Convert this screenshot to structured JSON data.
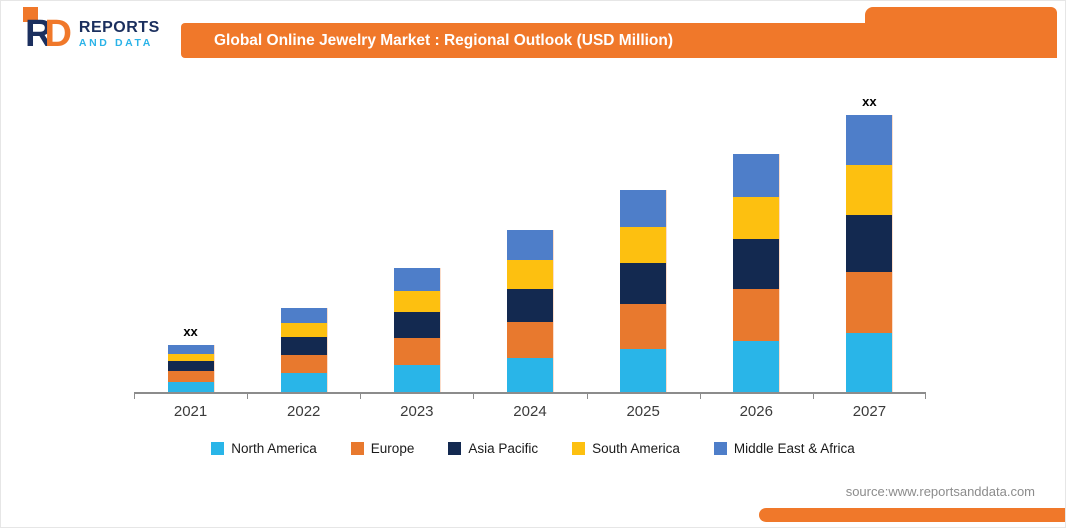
{
  "colors": {
    "accent": "#f0782a",
    "logo_navy": "#1b2f5e",
    "logo_cyan": "#2bb3e8",
    "axis": "#8c8c8c"
  },
  "header": {
    "logo": {
      "mark_r": "R",
      "mark_d": "D",
      "line1": "REPORTS",
      "line2": "AND DATA"
    },
    "title": "Global Online Jewelry Market : Regional Outlook (USD Million)"
  },
  "chart_data": {
    "type": "bar",
    "stacked": true,
    "title": "Global Online Jewelry Market : Regional Outlook (USD Million)",
    "xlabel": "",
    "ylabel": "USD Million",
    "value_axis_shown": false,
    "grid": false,
    "legend_position": "bottom",
    "categories": [
      "2021",
      "2022",
      "2023",
      "2024",
      "2025",
      "2026",
      "2027"
    ],
    "series": [
      {
        "name": "North America",
        "color": "#29b5e8",
        "values": [
          10,
          19,
          27,
          35,
          44,
          52,
          60
        ]
      },
      {
        "name": "Europe",
        "color": "#e8792e",
        "values": [
          11,
          19,
          28,
          36,
          45,
          53,
          62
        ]
      },
      {
        "name": "Asia Pacific",
        "color": "#132950",
        "values": [
          10,
          18,
          26,
          34,
          42,
          50,
          58
        ]
      },
      {
        "name": "South America",
        "color": "#fdc010",
        "values": [
          8,
          14,
          22,
          29,
          36,
          43,
          50
        ]
      },
      {
        "name": "Middle East & Africa",
        "color": "#4e7ec9",
        "values": [
          9,
          15,
          23,
          30,
          38,
          44,
          51
        ]
      }
    ],
    "bar_labels": {
      "2021": "xx",
      "2027": "xx"
    },
    "note": "Numeric values are masked in the source image (shown as 'xx'); series values are relative estimates from bar pixel heights."
  },
  "footer": {
    "source": "source:www.reportsanddata.com"
  }
}
